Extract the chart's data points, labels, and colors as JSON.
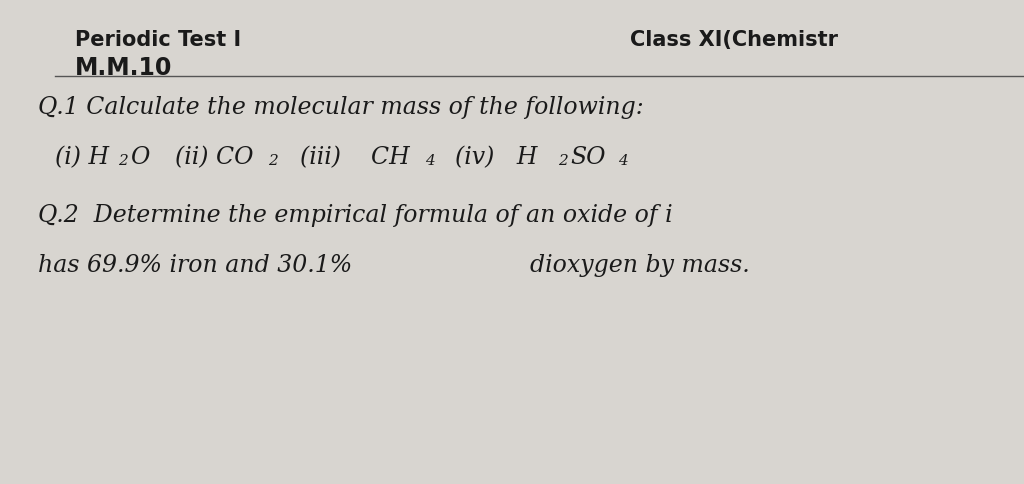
{
  "bg_color": "#d8d5d0",
  "header_left_line1": "Periodic Test I",
  "header_left_line2": "M.M.10",
  "header_right": "Class XI(Chemistr",
  "font_color": "#1a1a1a",
  "q1_prefix": "Q.1 Calculate the molecular mass of the following:",
  "q2_line1": "Q.2  Determine the empirical formula of an oxide of i",
  "q2_line2_left": "has 69.9% iron and 30.1%",
  "q2_line2_right": "dioxygen by mass."
}
